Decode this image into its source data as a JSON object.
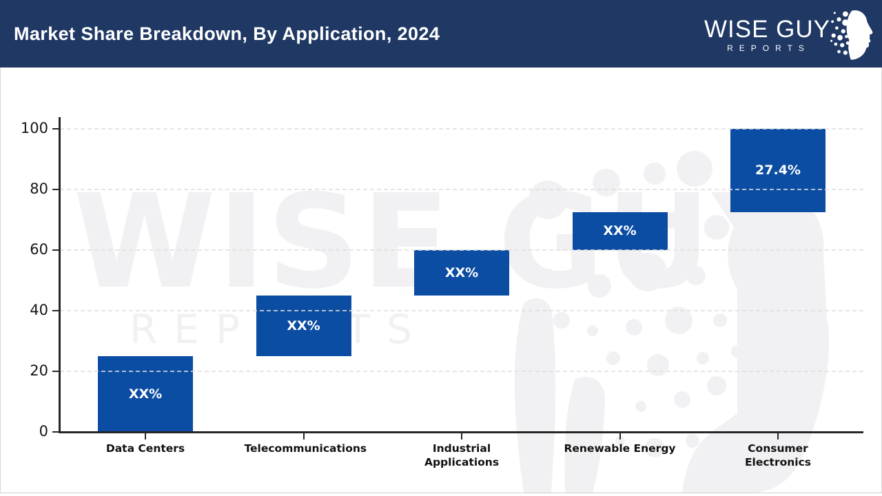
{
  "header": {
    "title": "Market Share Breakdown, By Application, 2024",
    "logo": {
      "name": "WISE GUY",
      "subtitle": "REPORTS",
      "head_icon": "dotted-face-profile-icon"
    },
    "background_color": "#1f3864",
    "text_color": "#ffffff"
  },
  "watermark": {
    "line1": "WISE GUY",
    "line2": "REPORTS",
    "color": "#f1f1f3"
  },
  "chart_data": {
    "type": "bar",
    "subtype": "waterfall",
    "title": "Market Share Breakdown, By Application, 2024",
    "categories": [
      "Data Centers",
      "Telecommunications",
      "Industrial Applications",
      "Renewable Energy",
      "Consumer Electronics"
    ],
    "bars": [
      {
        "category": "Data Centers",
        "start": 0,
        "end": 25,
        "value": 25,
        "label": "XX%"
      },
      {
        "category": "Telecommunications",
        "start": 25,
        "end": 45,
        "value": 20,
        "label": "XX%"
      },
      {
        "category": "Industrial Applications",
        "start": 45,
        "end": 60,
        "value": 15,
        "label": "XX%"
      },
      {
        "category": "Renewable Energy",
        "start": 60,
        "end": 72.6,
        "value": 12.6,
        "label": "XX%"
      },
      {
        "category": "Consumer Electronics",
        "start": 72.6,
        "end": 100,
        "value": 27.4,
        "label": "27.4%"
      }
    ],
    "yticks": [
      0,
      20,
      40,
      60,
      80,
      100
    ],
    "ylim": [
      0,
      105
    ],
    "xlabel": "",
    "ylabel": "",
    "grid": "dashed-horizontal",
    "legend": "none",
    "bar_color": "#0b4da2",
    "bar_label_color": "#ffffff",
    "axis_color": "#262626"
  }
}
